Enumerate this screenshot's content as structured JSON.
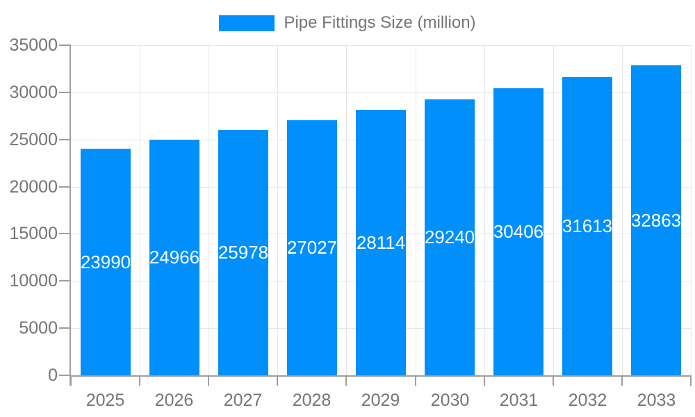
{
  "legend": {
    "label": "Pipe Fittings Size (million)"
  },
  "chart_data": {
    "type": "bar",
    "title": "Pipe Fittings Size (million)",
    "legend_position": "top",
    "categories": [
      "2025",
      "2026",
      "2027",
      "2028",
      "2029",
      "2030",
      "2031",
      "2032",
      "2033"
    ],
    "series": [
      {
        "name": "Pipe Fittings Size (million)",
        "values": [
          23990,
          24966,
          25978,
          27027,
          28114,
          29240,
          30406,
          31613,
          32863
        ]
      }
    ],
    "xlabel": "",
    "ylabel": "",
    "ylim": [
      0,
      35000
    ],
    "yticks": [
      0,
      5000,
      10000,
      15000,
      20000,
      25000,
      30000,
      35000
    ],
    "grid": true,
    "value_labels": "inside-center",
    "colors": {
      "bar": "#008FFB",
      "axis": "#9e9e9e",
      "gridline": "#e6e6e6",
      "tick_label": "#757575",
      "value_label": "#ffffff",
      "background": "#ffffff"
    }
  }
}
